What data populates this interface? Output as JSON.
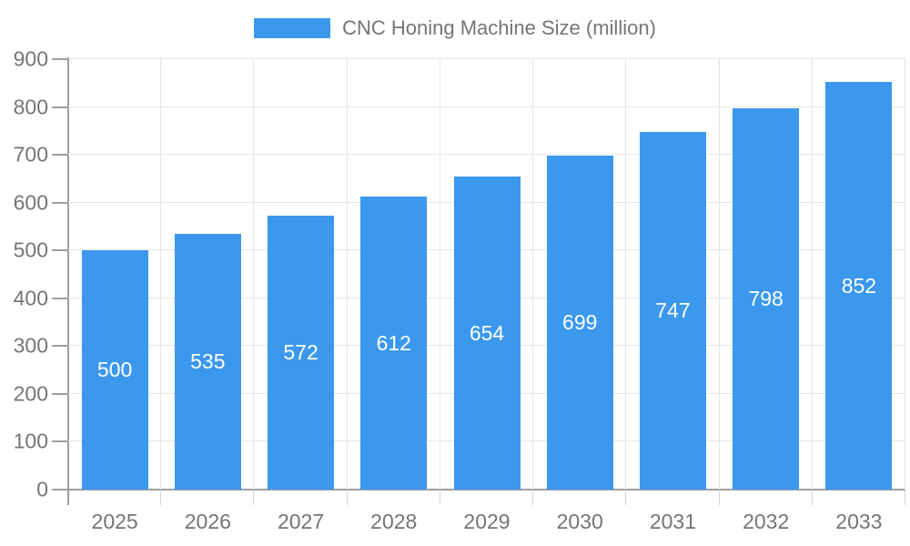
{
  "chart_data": {
    "type": "bar",
    "title": "CNC Honing Machine Size (million)",
    "categories": [
      "2025",
      "2026",
      "2027",
      "2028",
      "2029",
      "2030",
      "2031",
      "2032",
      "2033"
    ],
    "values": [
      500,
      535,
      572,
      612,
      654,
      699,
      747,
      798,
      852
    ],
    "series": [
      {
        "name": "CNC Honing Machine Size (million)",
        "values": [
          500,
          535,
          572,
          612,
          654,
          699,
          747,
          798,
          852
        ]
      }
    ],
    "xlabel": "",
    "ylabel": "",
    "ylim": [
      0,
      900
    ],
    "ytick_step": 100,
    "yticks": [
      "0",
      "100",
      "200",
      "300",
      "400",
      "500",
      "600",
      "700",
      "800",
      "900"
    ],
    "grid": true,
    "legend_position": "top-center",
    "bar_labels_visible": true,
    "colors": {
      "bar": "#3b98ed",
      "bar_value_label": "#ffffff",
      "axis_text": "#757575",
      "axis_line": "#9e9e9e",
      "gridline": "#e6e6e6",
      "x_tick": "#d4d4d4",
      "background": "#ffffff"
    }
  },
  "legend": {
    "label": "CNC Honing Machine Size (million)"
  }
}
